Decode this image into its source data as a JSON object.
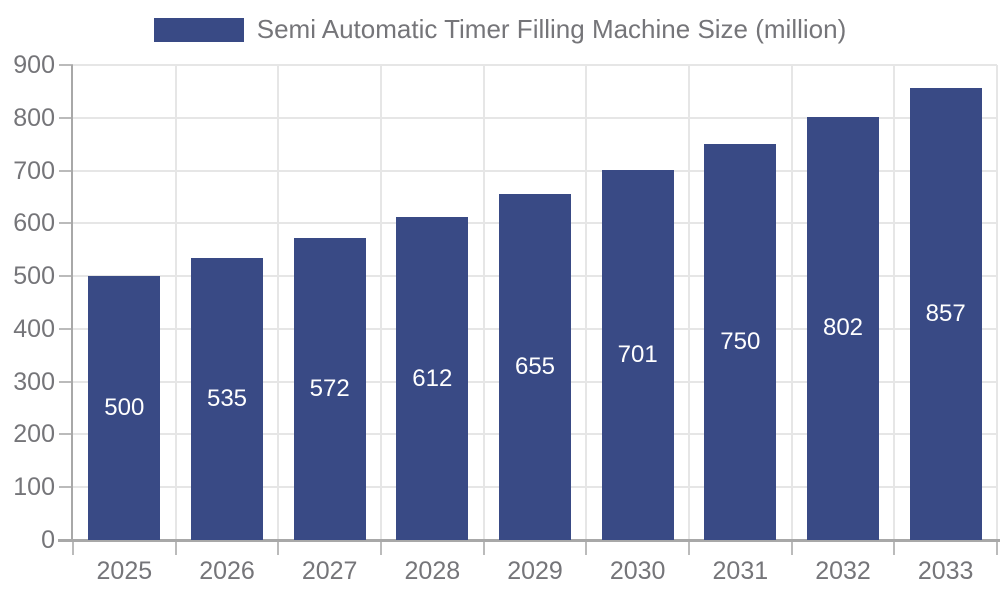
{
  "legend": {
    "label": "Semi Automatic Timer Filling Machine Size (million)"
  },
  "colors": {
    "bar": "#394A85",
    "grid": "#e6e6e6",
    "axis": "#a8a8a8",
    "tick": "#bbbbbb",
    "text": "#757579",
    "bar_label": "#ffffff"
  },
  "chart_data": {
    "type": "bar",
    "title": "Semi Automatic Timer Filling Machine Size (million)",
    "categories": [
      "2025",
      "2026",
      "2027",
      "2028",
      "2029",
      "2030",
      "2031",
      "2032",
      "2033"
    ],
    "values": [
      500,
      535,
      572,
      612,
      655,
      701,
      750,
      802,
      857
    ],
    "xlabel": "",
    "ylabel": "",
    "ylim": [
      0,
      900
    ],
    "ytick_step": 100,
    "yticks": [
      0,
      100,
      200,
      300,
      400,
      500,
      600,
      700,
      800,
      900
    ],
    "grid": true,
    "legend_position": "top-center",
    "value_labels_position": "inside-middle"
  }
}
